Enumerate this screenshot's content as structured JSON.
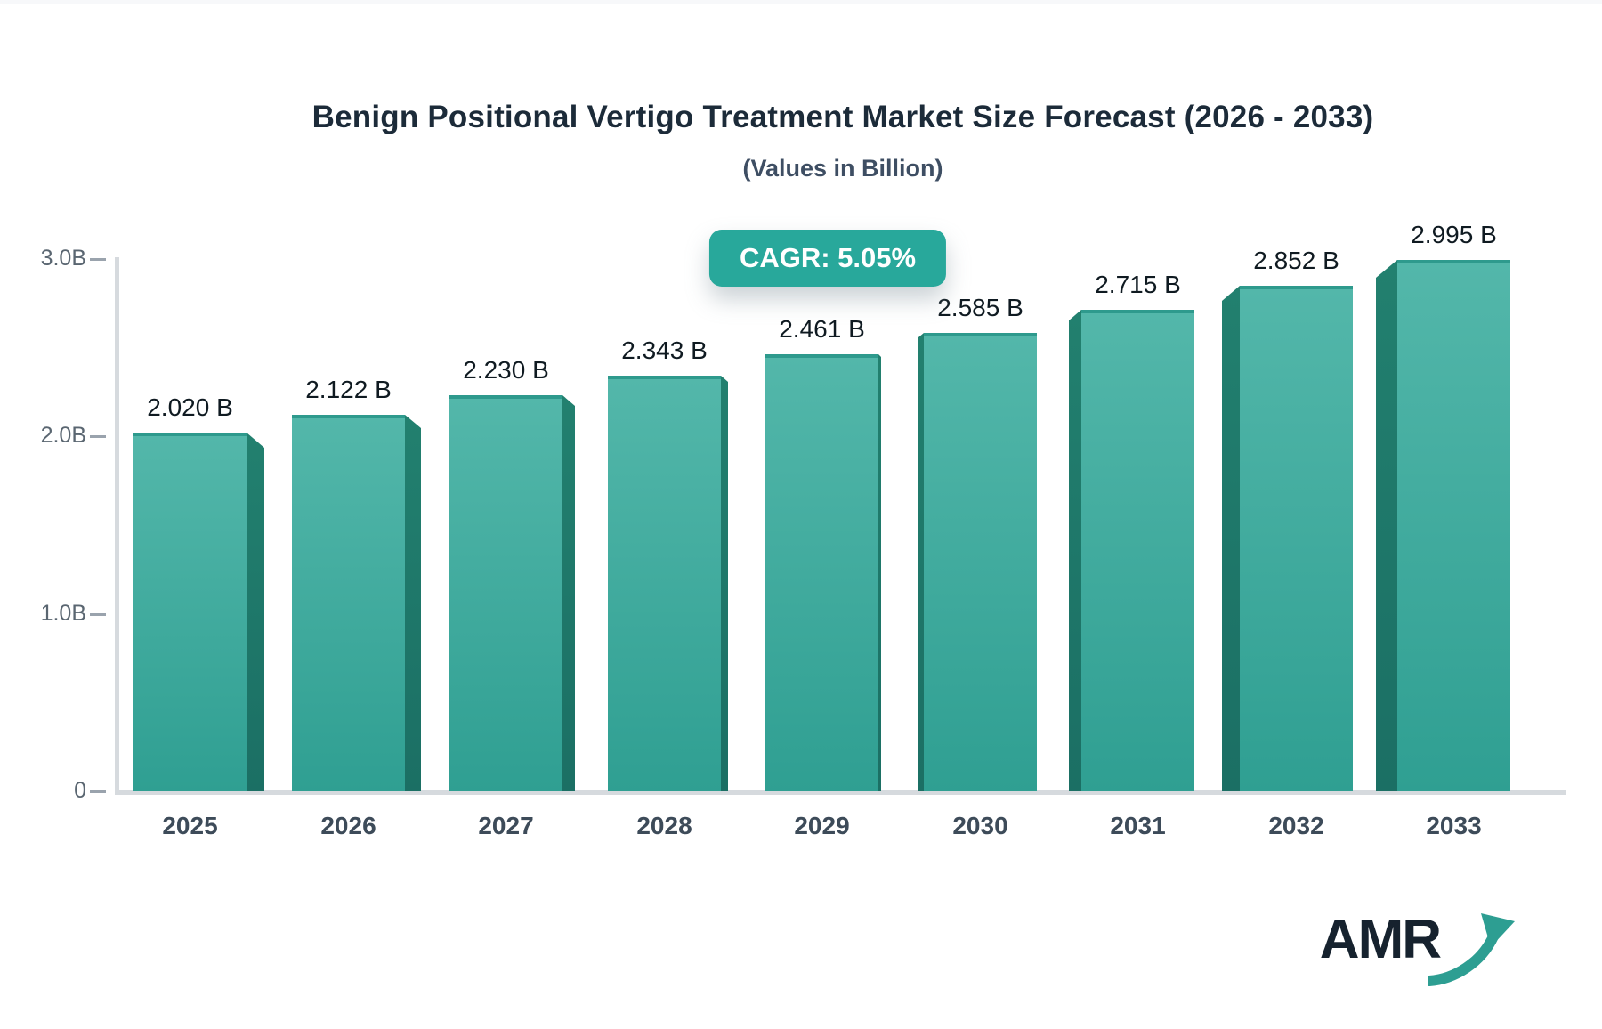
{
  "header": {
    "title": "Benign Positional Vertigo Treatment Market Size Forecast (2026 - 2033)",
    "subtitle": "(Values in Billion)"
  },
  "badge": {
    "label": "CAGR: 5.05%",
    "bg_color": "#28a89b",
    "text_color": "#ffffff"
  },
  "logo": {
    "text": "AMR",
    "text_color": "#16222e",
    "arrow_color": "#2d9e92"
  },
  "chart_data": {
    "type": "bar",
    "title": "Benign Positional Vertigo Treatment Market Size Forecast (2026 - 2033)",
    "subtitle": "(Values in Billion)",
    "categories": [
      "2025",
      "2026",
      "2027",
      "2028",
      "2029",
      "2030",
      "2031",
      "2032",
      "2033"
    ],
    "values": [
      2.02,
      2.122,
      2.23,
      2.343,
      2.461,
      2.585,
      2.715,
      2.852,
      2.995
    ],
    "value_labels": [
      "2.020 B",
      "2.122 B",
      "2.230 B",
      "2.343 B",
      "2.461 B",
      "2.585 B",
      "2.715 B",
      "2.852 B",
      "2.995 B"
    ],
    "unit": "B",
    "xlabel": "",
    "ylabel": "",
    "ylim": [
      0,
      3
    ],
    "yticks": [
      {
        "label": "0",
        "value": 0
      },
      {
        "label": "1.0B",
        "value": 1
      },
      {
        "label": "2.0B",
        "value": 2
      },
      {
        "label": "3.0B",
        "value": 3
      }
    ],
    "grid": false,
    "legend": false,
    "annotation": "CAGR: 5.05%",
    "bar_color_top": "#53b7aa",
    "bar_color_bottom": "#2f9f92",
    "bar_rim_color": "#2e9a8d",
    "bar_side_color_top": "#22806f",
    "bar_side_color_bottom": "#1b6f64"
  }
}
